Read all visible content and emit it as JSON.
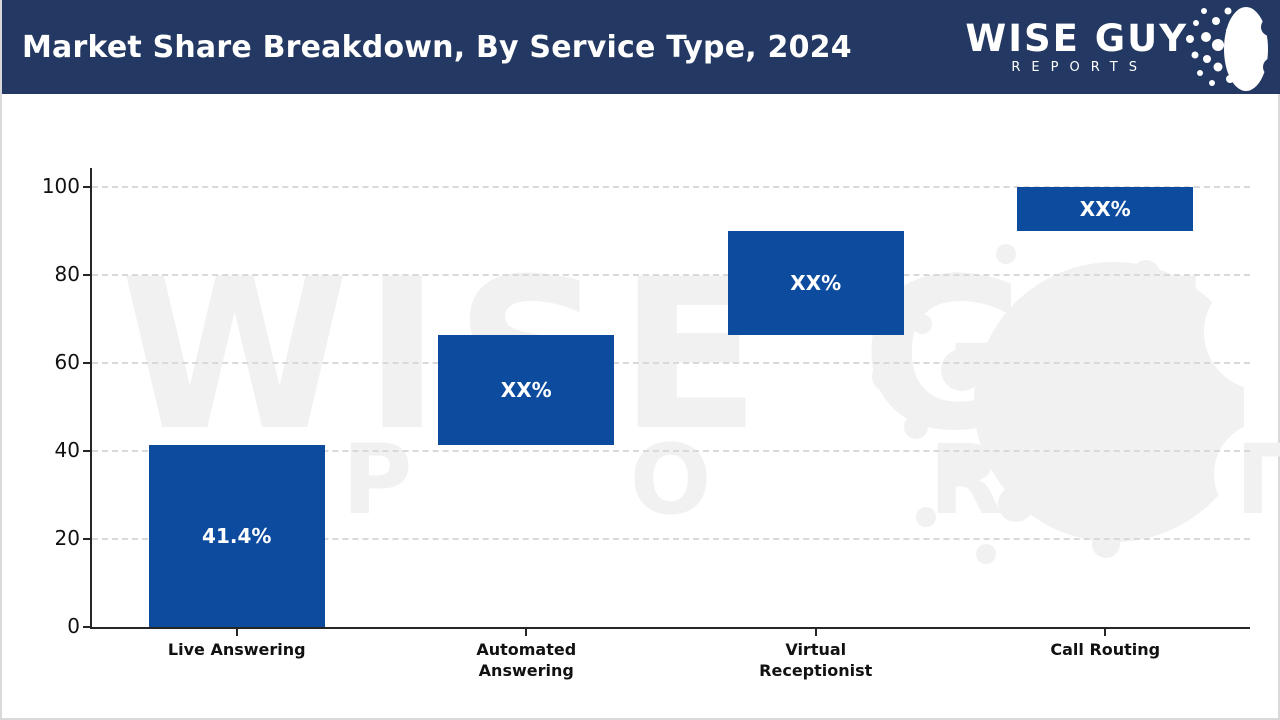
{
  "header": {
    "title": "Market Share Breakdown, By Service Type, 2024",
    "logo": {
      "line1": "WISE GUY",
      "line2": "REPORTS"
    }
  },
  "watermark": {
    "line1": "WISE GU",
    "line2": "P O R T S"
  },
  "chart_data": {
    "type": "bar",
    "subtype": "waterfall",
    "title": "Market Share Breakdown, By Service Type, 2024",
    "categories": [
      "Live Answering",
      "Automated Answering",
      "Virtual Receptionist",
      "Call Routing"
    ],
    "segments": [
      {
        "category": "Live Answering",
        "start": 0,
        "end": 41.4,
        "label": "41.4%"
      },
      {
        "category": "Automated Answering",
        "start": 41.4,
        "end": 66.3,
        "label": "XX%"
      },
      {
        "category": "Virtual Receptionist",
        "start": 66.3,
        "end": 89.9,
        "label": "XX%"
      },
      {
        "category": "Call Routing",
        "start": 89.9,
        "end": 100,
        "label": "XX%"
      }
    ],
    "xlabel": "",
    "ylabel": "",
    "ylim": [
      0,
      104
    ],
    "yticks": [
      0,
      20,
      40,
      60,
      80,
      100
    ],
    "grid": "horizontal-dashed",
    "legend": null,
    "bar_color": "#0c4b9e",
    "bar_label_color": "#ffffff"
  },
  "colors": {
    "header_bg": "#233862",
    "bar": "#0c4b9e",
    "axis": "#262626",
    "gridline": "#d9d9d9",
    "watermark": "#f1f1f1"
  }
}
